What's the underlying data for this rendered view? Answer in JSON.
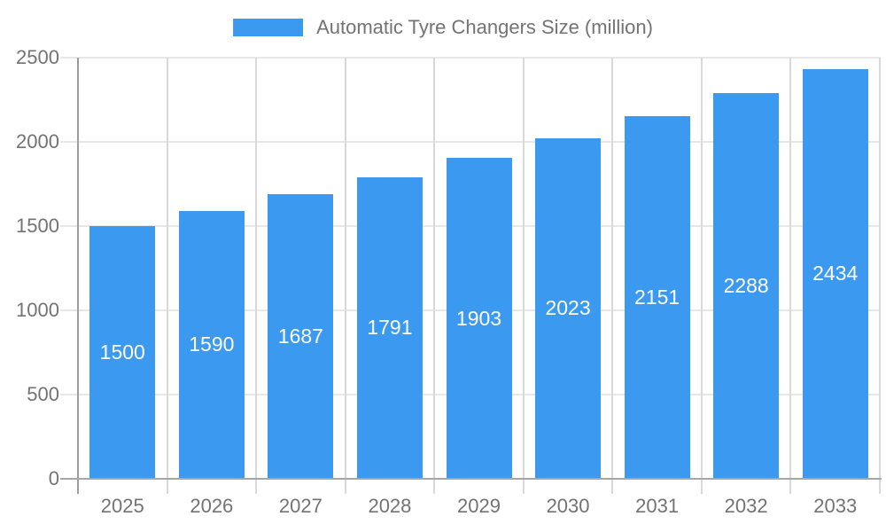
{
  "legend": {
    "label": "Automatic Tyre Changers Size (million)"
  },
  "chart_data": {
    "type": "bar",
    "title": "",
    "series_name": "Automatic Tyre Changers Size (million)",
    "categories": [
      "2025",
      "2026",
      "2027",
      "2028",
      "2029",
      "2030",
      "2031",
      "2032",
      "2033"
    ],
    "values": [
      1500,
      1590,
      1687,
      1791,
      1903,
      2023,
      2151,
      2288,
      2434
    ],
    "xlabel": "",
    "ylabel": "",
    "ylim": [
      0,
      2500
    ],
    "yticks": [
      0,
      500,
      1000,
      1500,
      2000,
      2500
    ],
    "grid": true,
    "legend_position": "top",
    "value_labels": "inside-center"
  },
  "colors": {
    "bar": "#3c99f0",
    "h_gridline": "#e7e7e7",
    "v_gridline": "#d9d9d9",
    "y_axis_line": "#9e9e9e",
    "x_axis_line": "#a6a6a6",
    "axis_text": "#737373",
    "value_label_text": "#ffffff",
    "background": "#ffffff"
  }
}
